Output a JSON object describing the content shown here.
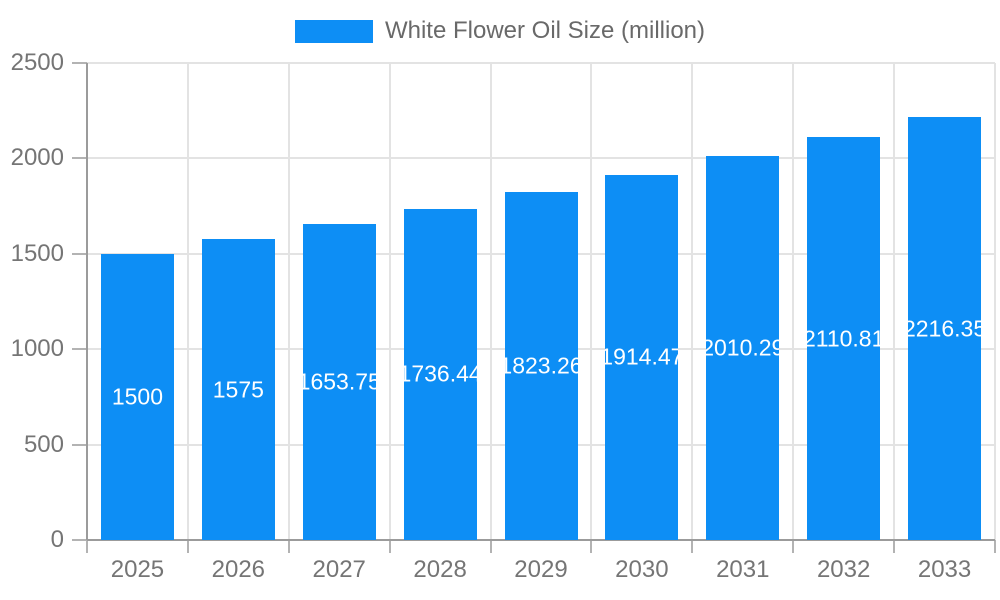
{
  "legend": {
    "label": "White Flower Oil Size (million)"
  },
  "colors": {
    "bar": "#0d8ef5",
    "grid": "#e3e3e3",
    "tick": "#b3b3b3",
    "axis": "#9b9b9b",
    "axis_text": "#757575",
    "legend_text": "#696969",
    "value_label_text": "#ffffff",
    "background": "#ffffff"
  },
  "chart_data": {
    "type": "bar",
    "title": "White Flower Oil Size (million)",
    "xlabel": "",
    "ylabel": "",
    "categories": [
      "2025",
      "2026",
      "2027",
      "2028",
      "2029",
      "2030",
      "2031",
      "2032",
      "2033"
    ],
    "values": [
      1500,
      1575,
      1653.75,
      1736.44,
      1823.26,
      1914.47,
      2010.29,
      2110.81,
      2216.35
    ],
    "value_labels": [
      "1500",
      "1575",
      "1653.75",
      "1736.44",
      "1823.26",
      "1914.47",
      "2010.29",
      "2110.81",
      "2216.35"
    ],
    "series_name": "White Flower Oil Size (million)",
    "ylim": [
      0,
      2500
    ],
    "y_ticks": [
      0,
      500,
      1000,
      1500,
      2000,
      2500
    ],
    "grid": true,
    "legend_position": "top",
    "value_labels_position": "center-inside-bar"
  }
}
